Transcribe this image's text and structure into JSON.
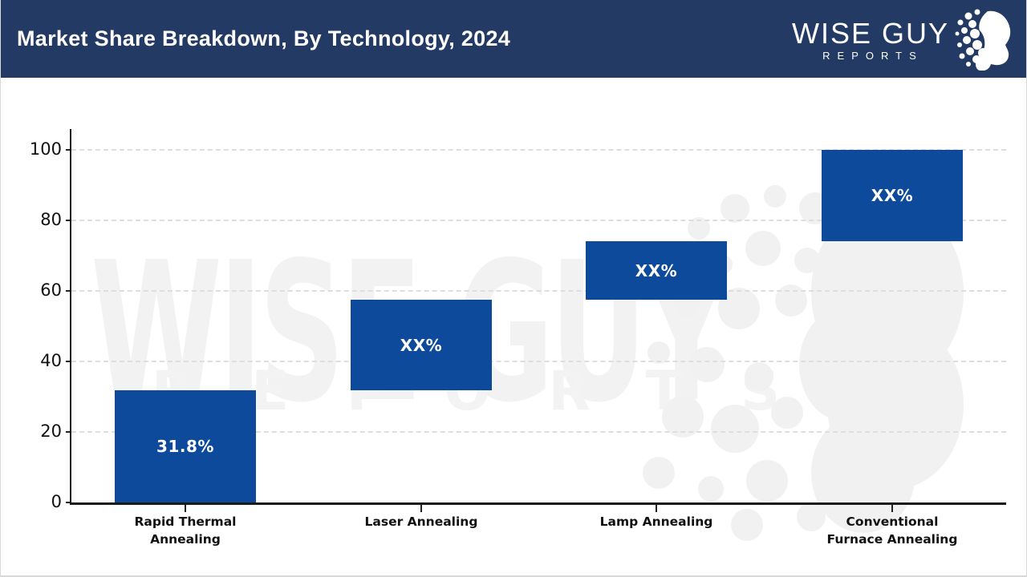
{
  "header": {
    "title": "Market Share Breakdown, By Technology, 2024",
    "logo": {
      "wordmark": "WISE GUY",
      "subtitle": "REPORTS"
    }
  },
  "watermark": {
    "line1": "WISE GUY",
    "line2": "REPORTS"
  },
  "colors": {
    "header_bg": "#223a64",
    "bar": "#0d4a9c",
    "grid": "#dedede",
    "axis": "#1a1a1a",
    "bar_label_text": "#ffffff",
    "watermark": "#f2f2f2"
  },
  "chart_data": {
    "type": "bar",
    "subtype": "waterfall",
    "title": "Market Share Breakdown, By Technology, 2024",
    "xlabel": "",
    "ylabel": "",
    "ylim": [
      0,
      100
    ],
    "yticks": [
      0,
      20,
      40,
      60,
      80,
      100
    ],
    "grid": "horizontal-dashed",
    "legend": "none",
    "categories": [
      "Rapid Thermal\nAnnealing",
      "Laser Annealing",
      "Lamp Annealing",
      "Conventional\nFurnace Annealing"
    ],
    "bars": [
      {
        "category": "Rapid Thermal Annealing",
        "start": 0,
        "end": 31.8,
        "label": "31.8%"
      },
      {
        "category": "Laser Annealing",
        "start": 31.8,
        "end": 57.5,
        "label": "XX%"
      },
      {
        "category": "Lamp Annealing",
        "start": 57.5,
        "end": 74,
        "label": "XX%"
      },
      {
        "category": "Conventional Furnace Annealing",
        "start": 74,
        "end": 100,
        "label": "XX%"
      }
    ]
  }
}
